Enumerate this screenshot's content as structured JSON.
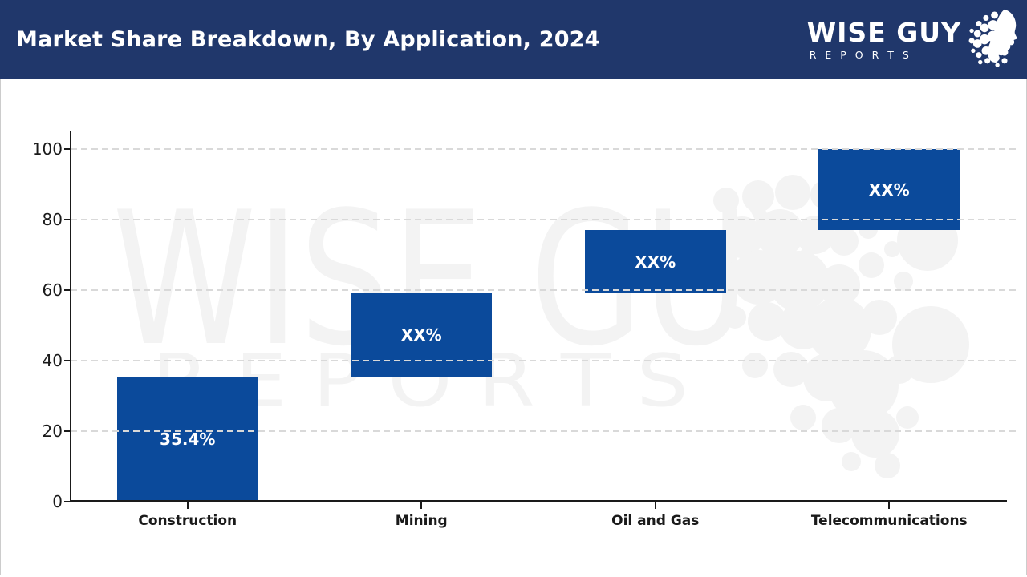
{
  "header": {
    "title": "Market Share Breakdown, By Application, 2024",
    "logo": {
      "name": "WISE GUY",
      "sub": "R E P O R T S"
    },
    "colors": {
      "bg": "#20376b",
      "text": "#ffffff"
    }
  },
  "watermark": {
    "line1": "WISE GUY",
    "line2": "R E P O R T S"
  },
  "chart_data": {
    "type": "bar",
    "subtype": "waterfall",
    "title": "Market Share Breakdown, By Application, 2024",
    "categories": [
      "Construction",
      "Mining",
      "Oil and Gas",
      "Telecommunications"
    ],
    "bar_labels": [
      "35.4%",
      "XX%",
      "XX%",
      "XX%"
    ],
    "segments": [
      {
        "start": 0,
        "end": 35.4
      },
      {
        "start": 35.4,
        "end": 59
      },
      {
        "start": 59,
        "end": 77
      },
      {
        "start": 77,
        "end": 100
      }
    ],
    "ylim": [
      0,
      100
    ],
    "yticks": [
      0,
      20,
      40,
      60,
      80,
      100
    ],
    "xlabel": "",
    "ylabel": "",
    "grid": "horizontal-dashed",
    "legend": "none",
    "bar_color": "#0b4a9b",
    "bar_label_color": "#ffffff",
    "axis_color": "#1a1a1a",
    "gridline_color": "#d9d9d9"
  }
}
